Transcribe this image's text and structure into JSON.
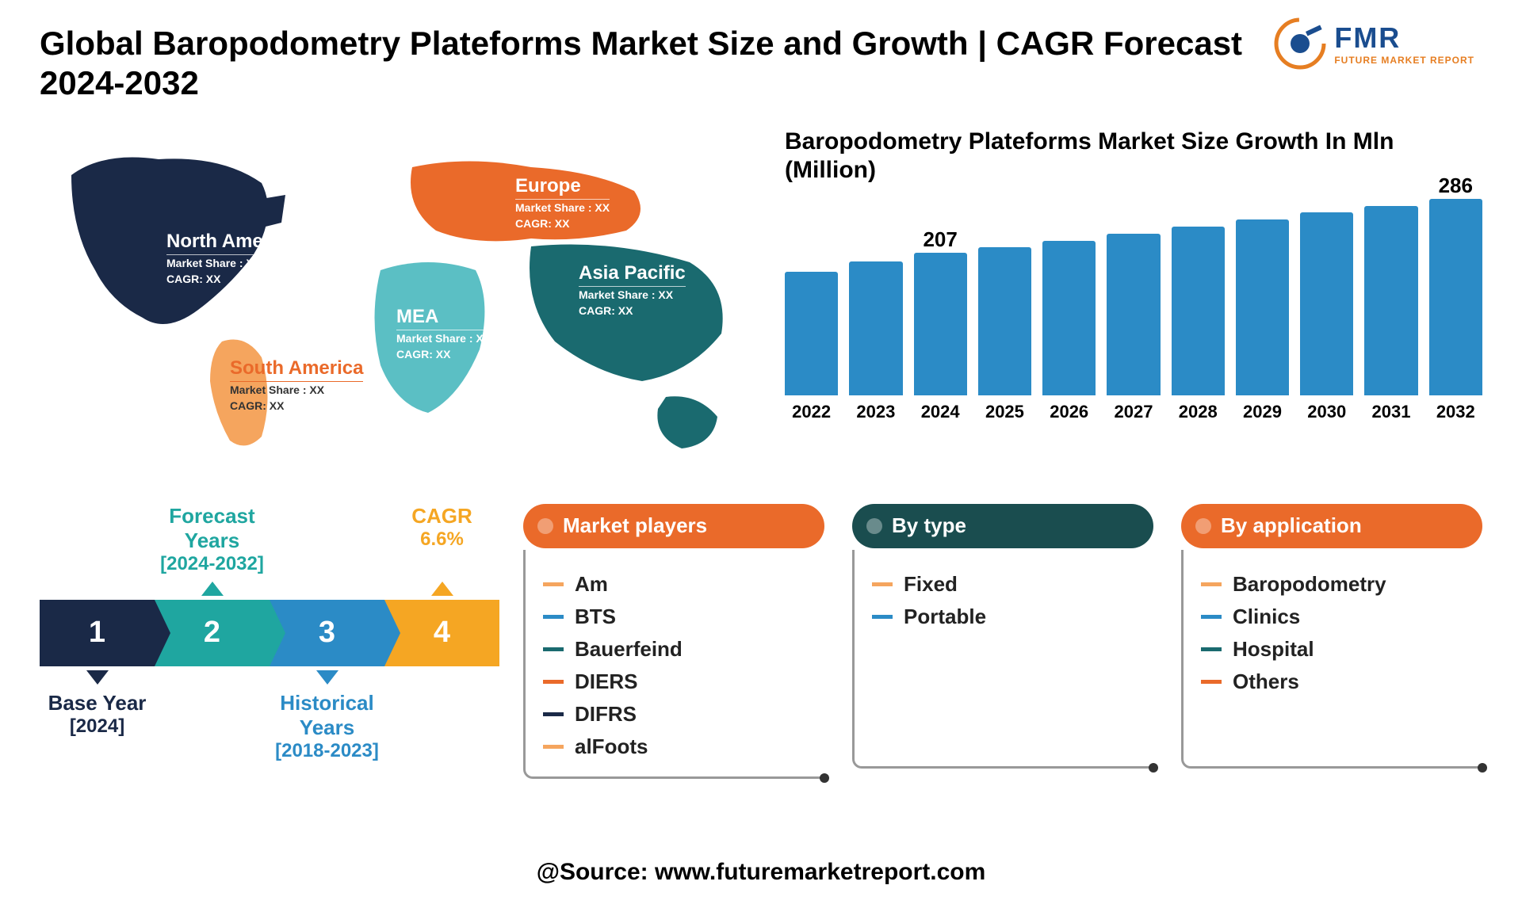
{
  "title_line1": "Global Baropodometry Plateforms Market Size and Growth | CAGR Forecast",
  "title_line2": " 2024-2032",
  "logo": {
    "main": "FMR",
    "sub": "FUTURE MARKET REPORT"
  },
  "map": {
    "regions": [
      {
        "name": "North America",
        "share": "Market Share : XX",
        "cagr": "CAGR: XX",
        "color": "#1a2947"
      },
      {
        "name": "South America",
        "share": "Market Share : XX",
        "cagr": "CAGR: XX",
        "color": "#f5a55e"
      },
      {
        "name": "Europe",
        "share": "Market Share : XX",
        "cagr": "CAGR: XX",
        "color": "#ea6a2a"
      },
      {
        "name": "MEA",
        "share": "Market Share : XX",
        "cagr": "CAGR: XX",
        "color": "#5bbfc4"
      },
      {
        "name": "Asia Pacific",
        "share": "Market Share : XX",
        "cagr": "CAGR: XX",
        "color": "#1a6a6f"
      }
    ]
  },
  "bar_chart": {
    "title": "Baropodometry Plateforms Market Size Growth In Mln (Million)",
    "type": "bar",
    "years": [
      "2022",
      "2023",
      "2024",
      "2025",
      "2026",
      "2027",
      "2028",
      "2029",
      "2030",
      "2031",
      "2032"
    ],
    "values": [
      180,
      195,
      207,
      215,
      225,
      235,
      246,
      256,
      266,
      276,
      286
    ],
    "show_value_idx": [
      2,
      10
    ],
    "bar_color": "#2b8bc6",
    "max": 300,
    "label_fontsize": 22,
    "value_fontsize": 26
  },
  "timeline": {
    "top": [
      {
        "idx": 1,
        "title": "Forecast Years",
        "sub": "[2024-2032]",
        "color": "#1fa6a0"
      },
      {
        "idx": 3,
        "title": "CAGR",
        "sub": "6.6%",
        "color": "#f5a623"
      }
    ],
    "bottom": [
      {
        "idx": 0,
        "title": "Base Year",
        "sub": "[2024]",
        "color": "#1a2947"
      },
      {
        "idx": 2,
        "title": "Historical Years",
        "sub": "[2018-2023]",
        "color": "#2b8bc6"
      }
    ],
    "segments": [
      {
        "num": "1",
        "color": "#1a2947"
      },
      {
        "num": "2",
        "color": "#1fa6a0"
      },
      {
        "num": "3",
        "color": "#2b8bc6"
      },
      {
        "num": "4",
        "color": "#f5a623"
      }
    ]
  },
  "categories": [
    {
      "title": "Market players",
      "header_color": "#ea6a2a",
      "items": [
        {
          "label": "Am",
          "dash": "#f5a55e"
        },
        {
          "label": "BTS",
          "dash": "#2b8bc6"
        },
        {
          "label": "Bauerfeind",
          "dash": "#1a6a6f"
        },
        {
          "label": "DIERS",
          "dash": "#ea6a2a"
        },
        {
          "label": "DIFRS",
          "dash": "#1a2947"
        },
        {
          "label": "alFoots",
          "dash": "#f5a55e"
        }
      ]
    },
    {
      "title": "By type",
      "header_color": "#1a4d4f",
      "items": [
        {
          "label": "Fixed",
          "dash": "#f5a55e"
        },
        {
          "label": "Portable",
          "dash": "#2b8bc6"
        }
      ]
    },
    {
      "title": "By application",
      "header_color": "#ea6a2a",
      "items": [
        {
          "label": "Baropodometry",
          "dash": "#f5a55e"
        },
        {
          "label": "Clinics",
          "dash": "#2b8bc6"
        },
        {
          "label": "Hospital",
          "dash": "#1a6a6f"
        },
        {
          "label": "Others",
          "dash": "#ea6a2a"
        }
      ]
    }
  ],
  "source": "@Source: www.futuremarketreport.com"
}
